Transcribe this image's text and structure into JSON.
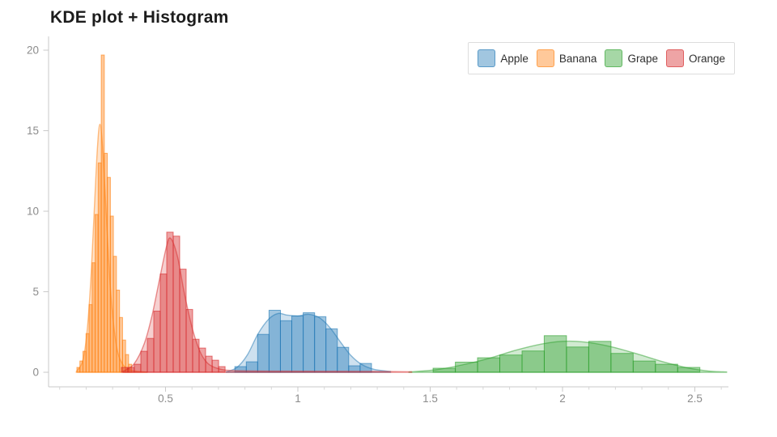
{
  "page": {
    "background": "#ffffff"
  },
  "legend": {
    "items": [
      {
        "label": "Apple",
        "color": "#1f77b4"
      },
      {
        "label": "Banana",
        "color": "#ff7f0e"
      },
      {
        "label": "Grape",
        "color": "#2ca02c"
      },
      {
        "label": "Orange",
        "color": "#d62728"
      }
    ]
  },
  "colors": {
    "axis_line": "#c9c9c9",
    "minor_tick": "#d5d5d5",
    "tick_label": "#8c8c8c",
    "title_text": "#1c1c1c"
  },
  "chart_data": {
    "type": "histogram+kde",
    "title": "KDE plot + Histogram",
    "xlabel": "",
    "ylabel": "",
    "xlim": [
      0.058,
      2.627
    ],
    "ylim": [
      0,
      20
    ],
    "grid": false,
    "legend_position": "top-right",
    "x_major_ticks": [
      {
        "v": 0.5,
        "label": "0.5"
      },
      {
        "v": 1,
        "label": "1"
      },
      {
        "v": 1.5,
        "label": "1.5"
      },
      {
        "v": 2,
        "label": "2"
      },
      {
        "v": 2.5,
        "label": "2.5"
      }
    ],
    "x_minor_tick_step": 0.1,
    "y_ticks": [
      {
        "v": 0,
        "label": "0"
      },
      {
        "v": 5,
        "label": "5"
      },
      {
        "v": 10,
        "label": "10"
      },
      {
        "v": 15,
        "label": "15"
      },
      {
        "v": 20,
        "label": "20"
      }
    ],
    "series": [
      {
        "name": "Apple",
        "color": "#1f77b4",
        "hist": {
          "start": 0.762,
          "bin_width": 0.043,
          "counts": [
            0.35,
            0.65,
            2.35,
            3.85,
            3.2,
            3.5,
            3.7,
            3.45,
            2.7,
            1.55,
            0.4,
            0.55
          ]
        },
        "kde": [
          [
            0.73,
            0.03
          ],
          [
            0.77,
            0.3
          ],
          [
            0.81,
            1.1
          ],
          [
            0.85,
            2.4
          ],
          [
            0.89,
            3.3
          ],
          [
            0.925,
            3.65
          ],
          [
            0.96,
            3.55
          ],
          [
            1.0,
            3.5
          ],
          [
            1.04,
            3.6
          ],
          [
            1.08,
            3.4
          ],
          [
            1.12,
            2.8
          ],
          [
            1.16,
            1.9
          ],
          [
            1.2,
            1.05
          ],
          [
            1.24,
            0.5
          ],
          [
            1.29,
            0.17
          ],
          [
            1.35,
            0.05
          ]
        ]
      },
      {
        "name": "Banana",
        "color": "#ff7f0e",
        "hist": {
          "start": 0.165,
          "bin_width": 0.0115,
          "counts": [
            0.3,
            0.7,
            1.3,
            2.4,
            4.2,
            6.8,
            9.8,
            13.0,
            19.7,
            13.6,
            12.1,
            9.7,
            7.2,
            5.1,
            3.4,
            2.0,
            1.1,
            0.5
          ]
        },
        "kde": [
          [
            0.163,
            0.05
          ],
          [
            0.185,
            0.6
          ],
          [
            0.2,
            2.0
          ],
          [
            0.215,
            5.0
          ],
          [
            0.23,
            9.8
          ],
          [
            0.242,
            13.8
          ],
          [
            0.252,
            15.4
          ],
          [
            0.263,
            13.8
          ],
          [
            0.276,
            9.8
          ],
          [
            0.29,
            5.6
          ],
          [
            0.305,
            2.8
          ],
          [
            0.32,
            1.2
          ],
          [
            0.34,
            0.45
          ],
          [
            0.365,
            0.15
          ],
          [
            0.4,
            0.05
          ],
          [
            0.43,
            0.02
          ]
        ]
      },
      {
        "name": "Grape",
        "color": "#2ca02c",
        "hist": {
          "start": 1.511,
          "bin_width": 0.084,
          "counts": [
            0.25,
            0.63,
            0.9,
            1.07,
            1.32,
            2.27,
            1.57,
            1.92,
            1.17,
            0.7,
            0.5,
            0.3
          ]
        },
        "kde": [
          [
            1.42,
            0.02
          ],
          [
            1.52,
            0.15
          ],
          [
            1.62,
            0.45
          ],
          [
            1.72,
            0.85
          ],
          [
            1.82,
            1.35
          ],
          [
            1.92,
            1.75
          ],
          [
            2.0,
            1.92
          ],
          [
            2.08,
            1.88
          ],
          [
            2.18,
            1.6
          ],
          [
            2.28,
            1.15
          ],
          [
            2.38,
            0.65
          ],
          [
            2.47,
            0.28
          ],
          [
            2.55,
            0.08
          ],
          [
            2.62,
            0.02
          ]
        ]
      },
      {
        "name": "Orange",
        "color": "#d62728",
        "hist": {
          "start": 0.333,
          "bin_width": 0.0245,
          "counts": [
            0.3,
            0.3,
            0.5,
            1.3,
            2.1,
            3.8,
            6.1,
            8.7,
            8.45,
            6.4,
            3.9,
            2.05,
            1.5,
            1.0,
            0.75,
            0.35
          ]
        },
        "kde": [
          [
            0.34,
            0.06
          ],
          [
            0.38,
            0.5
          ],
          [
            0.42,
            1.8
          ],
          [
            0.45,
            3.6
          ],
          [
            0.48,
            6.0
          ],
          [
            0.505,
            7.9
          ],
          [
            0.52,
            8.3
          ],
          [
            0.545,
            7.2
          ],
          [
            0.57,
            5.0
          ],
          [
            0.6,
            2.8
          ],
          [
            0.63,
            1.3
          ],
          [
            0.66,
            0.55
          ],
          [
            0.7,
            0.22
          ],
          [
            0.76,
            0.1
          ],
          [
            0.9,
            0.07
          ],
          [
            1.1,
            0.06
          ],
          [
            1.3,
            0.05
          ],
          [
            1.43,
            0.03
          ]
        ]
      }
    ]
  }
}
